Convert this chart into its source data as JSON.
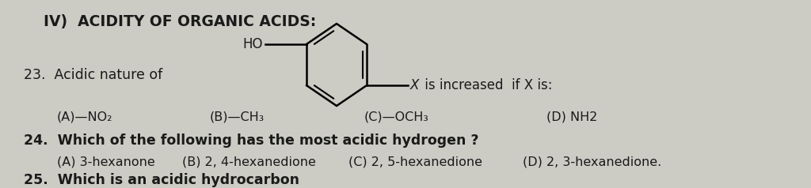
{
  "background_color": "#cccbc4",
  "title_text": "IV)  ACIDITY OF ORGANIC ACIDS:",
  "title_fontsize": 13.5,
  "title_fontweight": "bold",
  "font_color": "#1a1a1a",
  "q23_label": "23.  Acidic nature of",
  "q23_fontsize": 12.5,
  "ho_label": "HO",
  "is_increased": " is increased  if X is:",
  "options_23": [
    "(A)—NO₂",
    "(B)—CH₃",
    "(C)—OCH₃",
    "(D) NH2"
  ],
  "q24_text": "24.  Which of the following has the most acidic hydrogen ?",
  "options_24": [
    "(A) 3-hexanone",
    "(B) 2, 4-hexanedione",
    "(C) 2, 5-hexanedione",
    "(D) 2, 3-hexanedione."
  ],
  "q25_text": "25.  Which is an acidic hydrocarbon",
  "fontsize_options": 11.5,
  "fontsize_q24": 12.5
}
